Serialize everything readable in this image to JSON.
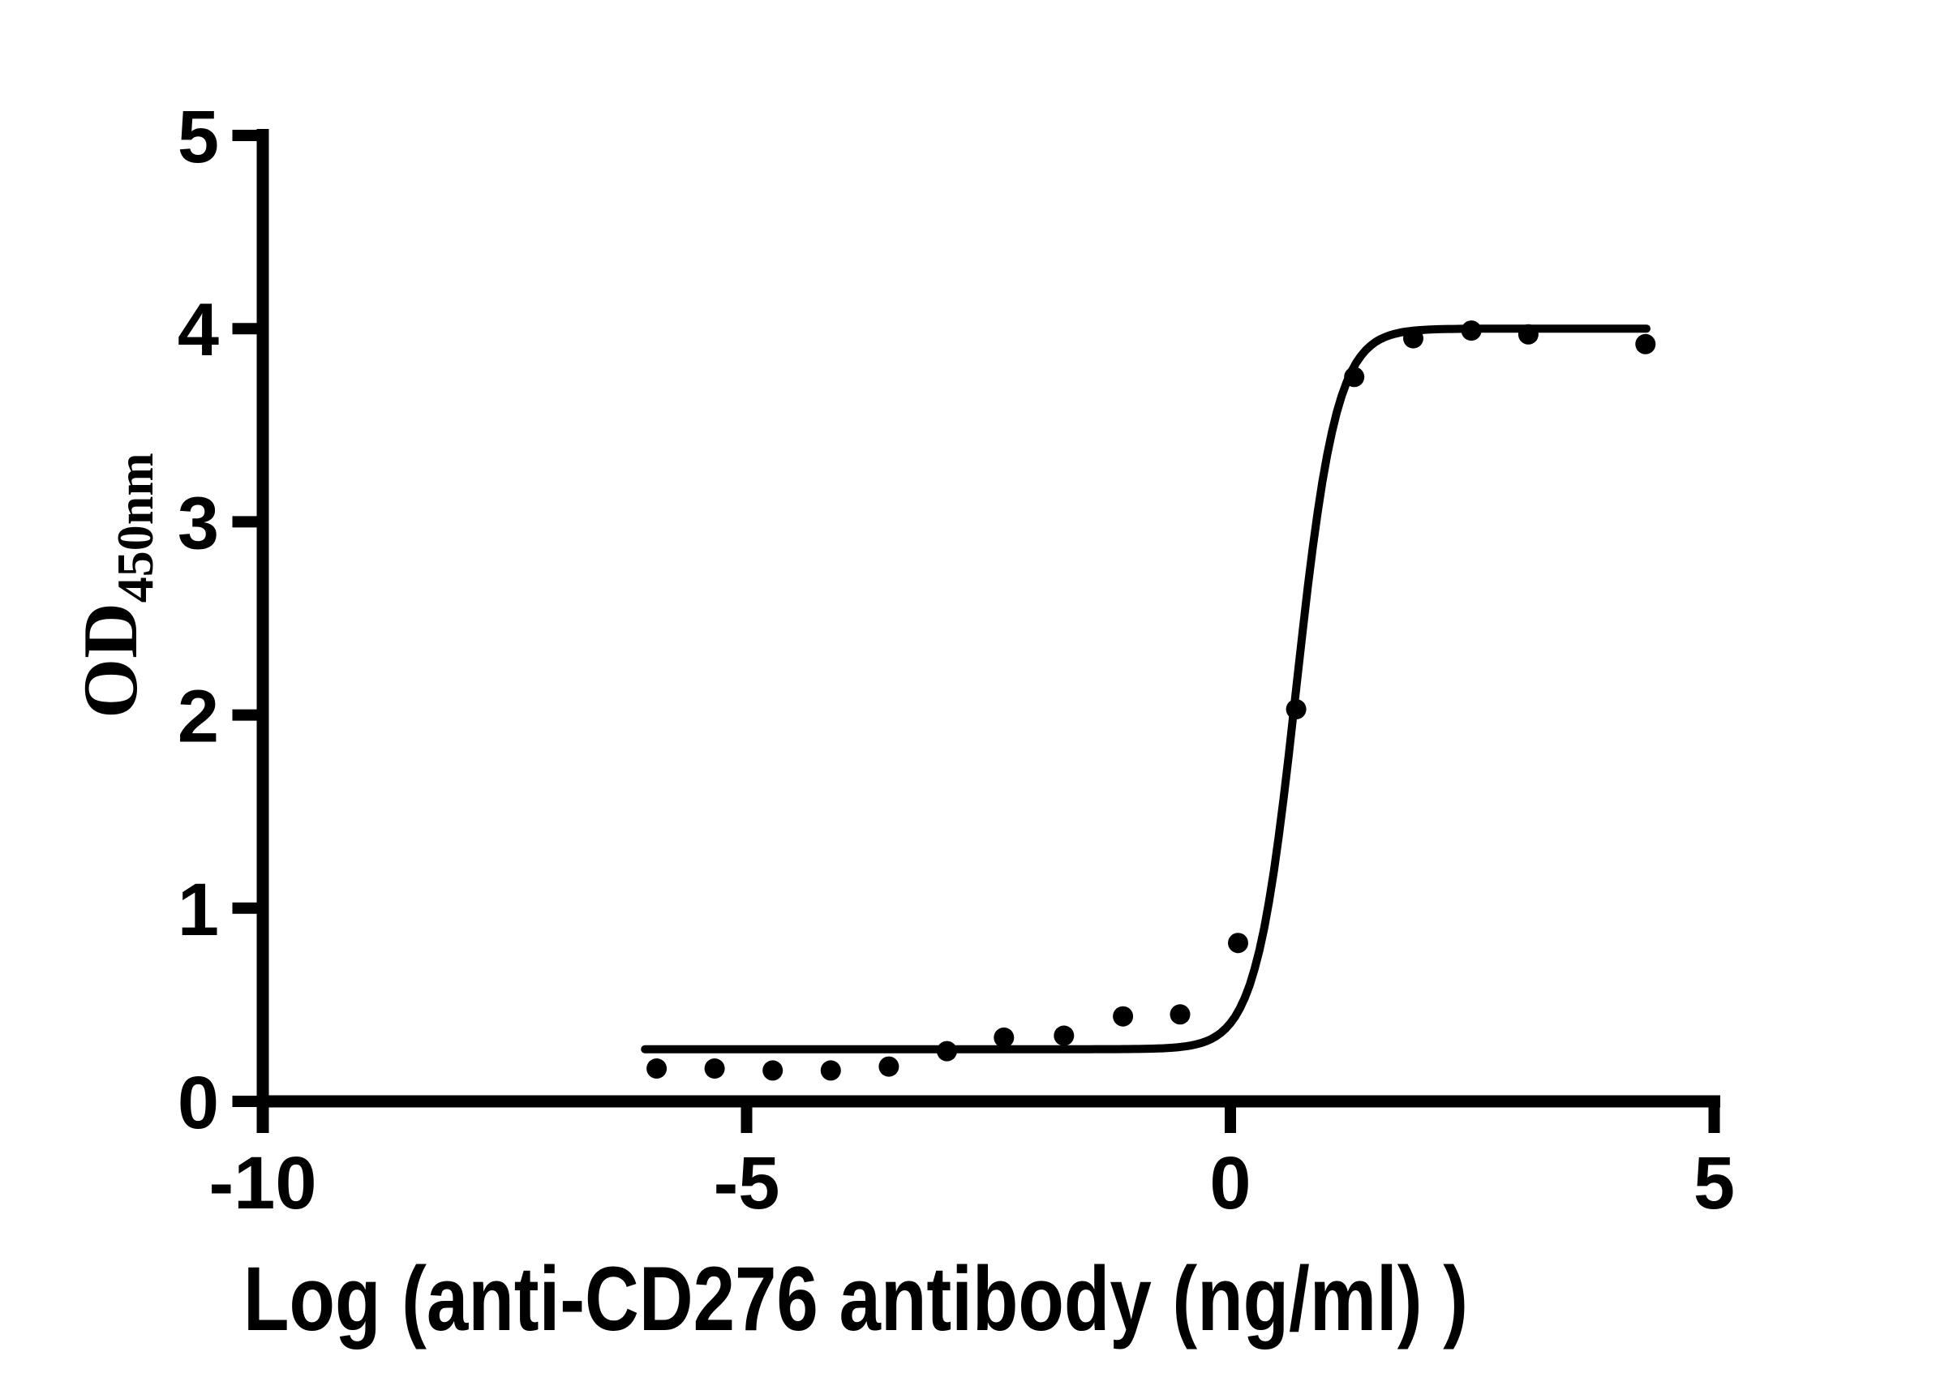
{
  "figure": {
    "kind": "ELISA activity sigmoidal dose-response plot",
    "colors": {
      "background": "#ffffff",
      "axis": "#000000",
      "marker": "#000000",
      "curve": "#000000",
      "text": "#000000"
    }
  },
  "chart_data": {
    "type": "scatter",
    "title": "",
    "xlabel": "Log (anti-CD276 antibody (ng/ml) )",
    "ylabel_main": "OD",
    "ylabel_sub": "450nm",
    "xlim": [
      -10,
      5
    ],
    "ylim": [
      0,
      5
    ],
    "x_ticks": [
      -10,
      -5,
      0,
      5
    ],
    "y_ticks": [
      0,
      1,
      2,
      3,
      4,
      5
    ],
    "grid": false,
    "legend": null,
    "marker": {
      "shape": "circle",
      "color": "#000000"
    },
    "points": [
      {
        "x": -5.93,
        "y": 0.17
      },
      {
        "x": -5.33,
        "y": 0.17
      },
      {
        "x": -4.73,
        "y": 0.16
      },
      {
        "x": -4.13,
        "y": 0.16
      },
      {
        "x": -3.53,
        "y": 0.18
      },
      {
        "x": -2.93,
        "y": 0.26
      },
      {
        "x": -2.34,
        "y": 0.33
      },
      {
        "x": -1.72,
        "y": 0.34
      },
      {
        "x": -1.11,
        "y": 0.44
      },
      {
        "x": -0.52,
        "y": 0.45
      },
      {
        "x": 0.08,
        "y": 0.82
      },
      {
        "x": 0.68,
        "y": 2.03
      },
      {
        "x": 1.28,
        "y": 3.75
      },
      {
        "x": 1.89,
        "y": 3.95
      },
      {
        "x": 2.49,
        "y": 3.99
      },
      {
        "x": 3.08,
        "y": 3.97
      },
      {
        "x": 4.29,
        "y": 3.92
      }
    ],
    "fit_curve": {
      "model": "four_parameter_logistic",
      "bottom": 0.27,
      "top": 4.0,
      "log_ec50": 0.68,
      "hill_slope": 2.1,
      "x_start": -6.05,
      "x_end": 4.32
    }
  }
}
